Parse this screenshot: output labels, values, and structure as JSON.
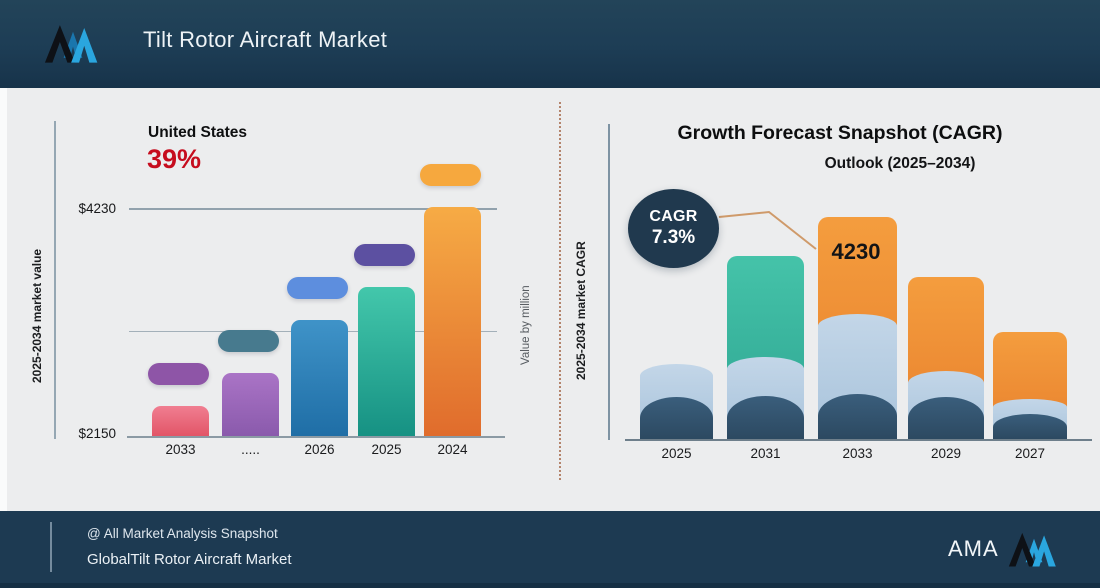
{
  "header": {
    "title": "Tilt Rotor Aircraft Market",
    "logo_icon": "ama-logo"
  },
  "footer": {
    "attribution": "@ All Market Analysis Snapshot",
    "source": "GlobalTilt Rotor Aircraft Market",
    "brand_text": "AMA",
    "logo_icon": "ama-logo"
  },
  "colors": {
    "header_bg": "#1d3d55",
    "footer_bg": "#1d3a52",
    "panel_bg": "#ecedee",
    "accent_red": "#c60d1e",
    "callout_circle": "#20394e",
    "callout_line": "#cf9a6a",
    "dotted_divider": "#b4846c",
    "logo_blue": "#2aa6df",
    "logo_black": "#0e1116"
  },
  "chart_data": [
    {
      "type": "bar",
      "panel": "left",
      "title": "United States",
      "highlight": "39%",
      "ylabel": "2025-2034 market value",
      "ylabel_secondary": "Value by million",
      "yticks": [
        {
          "label": "$4230",
          "value": 4230
        },
        {
          "label": "$2150",
          "value": 2150
        }
      ],
      "axis_range": [
        2150,
        4230
      ],
      "grid": "two horizontal gridlines, top gridline = $4230, baseline = $2150",
      "categories": [
        "2033",
        ".....",
        "2026",
        "2025",
        "2024"
      ],
      "values": [
        2420,
        2720,
        3210,
        3510,
        4230
      ],
      "bar_gradients": [
        [
          "#f07e91",
          "#e25567"
        ],
        [
          "#aa74c6",
          "#8a5aac"
        ],
        [
          "#3f93c8",
          "#1f6ea6"
        ],
        [
          "#43c7ab",
          "#169183"
        ],
        [
          "#f6ab45",
          "#e06c2c"
        ]
      ],
      "cap_colors": [
        "#8e55a7",
        "#477a8e",
        "#5d8ede",
        "#5c50a1",
        "#f6a83e"
      ],
      "note": "each bar has a floating rounded cap above it"
    },
    {
      "type": "stacked-bar",
      "panel": "right",
      "title": "Growth Forecast Snapshot (CAGR)",
      "subtitle": "Outlook (2025–2034)",
      "ylabel": "2025-2034 market CAGR",
      "callout": {
        "label": "CAGR",
        "value": "7.3%"
      },
      "annotation": {
        "category": "2033",
        "label": "4230"
      },
      "categories": [
        "2025",
        "2031",
        "2033",
        "2029",
        "2027"
      ],
      "series": [
        {
          "name": "base",
          "values": [
            42,
            43,
            45,
            42,
            25
          ],
          "gradient": [
            "#3a5e7c",
            "#2c4961"
          ]
        },
        {
          "name": "mid",
          "values": [
            33,
            39,
            80,
            26,
            15
          ],
          "gradient": [
            "#c3d6e8",
            "#a8c3db"
          ]
        },
        {
          "name": "top",
          "values": [
            0,
            101,
            97,
            94,
            67
          ],
          "gradients": [
            null,
            [
              "#45c3a9",
              "#2da491"
            ],
            [
              "#f49d3e",
              "#e8802d"
            ],
            [
              "#f49d3e",
              "#e8802d"
            ],
            [
              "#f49d3e",
              "#e8802d"
            ]
          ]
        }
      ],
      "units": "relative height (no numeric axis shown); total heights 75/183/222/162/107",
      "legend": "none",
      "grid": "off"
    }
  ]
}
